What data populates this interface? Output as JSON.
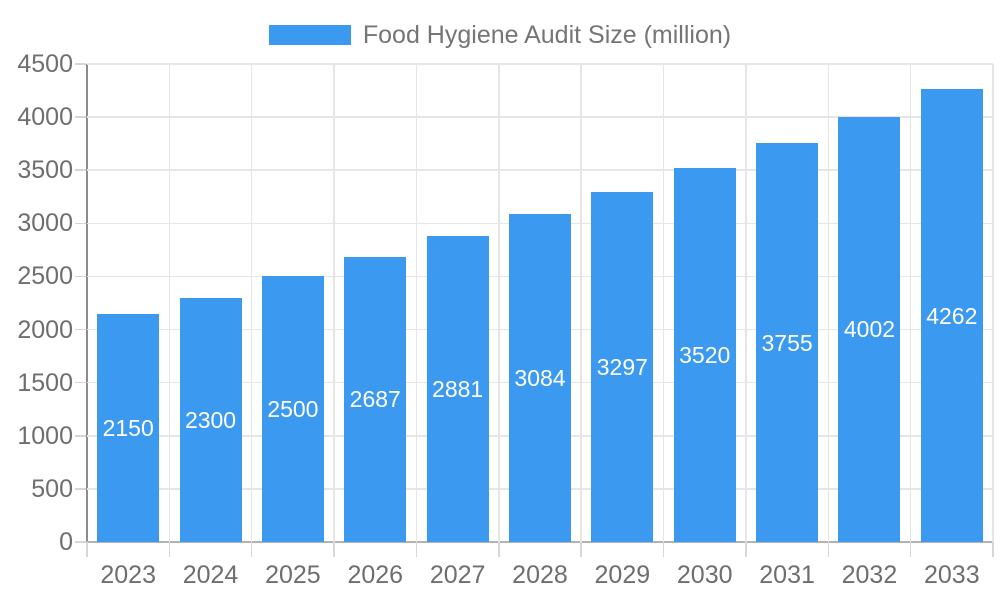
{
  "chart_data": {
    "type": "bar",
    "title": "Food Hygiene Audit Size (million)",
    "legend_position": "top",
    "categories": [
      "2023",
      "2024",
      "2025",
      "2026",
      "2027",
      "2028",
      "2029",
      "2030",
      "2031",
      "2032",
      "2033"
    ],
    "values": [
      2150,
      2300,
      2500,
      2687,
      2881,
      3084,
      3297,
      3520,
      3755,
      4002,
      4262
    ],
    "series": [
      {
        "name": "Food Hygiene Audit Size (million)",
        "values": [
          2150,
          2300,
          2500,
          2687,
          2881,
          3084,
          3297,
          3520,
          3755,
          4002,
          4262
        ]
      }
    ],
    "xlabel": "",
    "ylabel": "",
    "ylim": [
      0,
      4500
    ],
    "y_ticks": [
      0,
      500,
      1000,
      1500,
      2000,
      2500,
      3000,
      3500,
      4000,
      4500
    ],
    "grid": true,
    "value_labels": "inside-center",
    "colors": {
      "bar": "#3B99F0",
      "gridline": "#e6e6e6",
      "tick": "#d6d6d6",
      "y_axis_line": "#8c8c8c",
      "x_axis_line": "#b3b3b3",
      "axis_text": "#6e6e6e",
      "title_text": "#757575",
      "bar_label_text": "#ffffff",
      "background": "#ffffff"
    }
  }
}
